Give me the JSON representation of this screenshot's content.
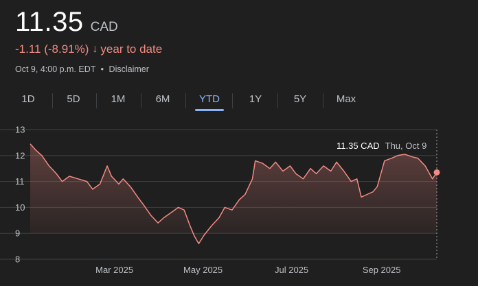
{
  "quote": {
    "price": "11.35",
    "currency": "CAD",
    "change": "-1.11 (-8.91%)",
    "period": "year to date",
    "timestamp": "Oct 9, 4:00 p.m. EDT",
    "separator": "•",
    "disclaimer": "Disclaimer"
  },
  "tabs": [
    {
      "label": "1D",
      "active": false
    },
    {
      "label": "5D",
      "active": false
    },
    {
      "label": "1M",
      "active": false
    },
    {
      "label": "6M",
      "active": false
    },
    {
      "label": "YTD",
      "active": true
    },
    {
      "label": "1Y",
      "active": false
    },
    {
      "label": "5Y",
      "active": false
    },
    {
      "label": "Max",
      "active": false
    }
  ],
  "tooltip": {
    "price": "11.35 CAD",
    "date": "Thu, Oct 9"
  },
  "colors": {
    "line": "#f28b82",
    "accent": "#8ab4f8",
    "background": "#1f1f1f"
  },
  "chart_data": {
    "type": "area",
    "ylim": [
      8,
      13
    ],
    "yticks": [
      "13",
      "12",
      "11",
      "10",
      "9",
      "8"
    ],
    "xticks": [
      {
        "label": "Mar 2025",
        "date": "2025-03-01"
      },
      {
        "label": "May 2025",
        "date": "2025-05-01"
      },
      {
        "label": "Jul 2025",
        "date": "2025-07-01"
      },
      {
        "label": "Sep 2025",
        "date": "2025-09-01"
      }
    ],
    "xlim": [
      "2025-01-02",
      "2025-10-09"
    ],
    "grid": true,
    "points": [
      [
        "2025-01-02",
        12.45
      ],
      [
        "2025-01-06",
        12.2
      ],
      [
        "2025-01-10",
        12.0
      ],
      [
        "2025-01-15",
        11.6
      ],
      [
        "2025-01-20",
        11.3
      ],
      [
        "2025-01-24",
        11.0
      ],
      [
        "2025-01-29",
        11.2
      ],
      [
        "2025-02-04",
        11.1
      ],
      [
        "2025-02-10",
        11.0
      ],
      [
        "2025-02-14",
        10.7
      ],
      [
        "2025-02-19",
        10.9
      ],
      [
        "2025-02-24",
        11.6
      ],
      [
        "2025-02-27",
        11.2
      ],
      [
        "2025-03-04",
        10.9
      ],
      [
        "2025-03-07",
        11.1
      ],
      [
        "2025-03-12",
        10.8
      ],
      [
        "2025-03-17",
        10.4
      ],
      [
        "2025-03-21",
        10.1
      ],
      [
        "2025-03-26",
        9.7
      ],
      [
        "2025-03-31",
        9.4
      ],
      [
        "2025-04-04",
        9.6
      ],
      [
        "2025-04-09",
        9.8
      ],
      [
        "2025-04-14",
        10.0
      ],
      [
        "2025-04-18",
        9.9
      ],
      [
        "2025-04-22",
        9.3
      ],
      [
        "2025-04-25",
        8.9
      ],
      [
        "2025-04-28",
        8.6
      ],
      [
        "2025-05-02",
        8.95
      ],
      [
        "2025-05-07",
        9.3
      ],
      [
        "2025-05-12",
        9.6
      ],
      [
        "2025-05-16",
        10.0
      ],
      [
        "2025-05-21",
        9.9
      ],
      [
        "2025-05-26",
        10.3
      ],
      [
        "2025-05-30",
        10.5
      ],
      [
        "2025-06-04",
        11.1
      ],
      [
        "2025-06-06",
        11.8
      ],
      [
        "2025-06-11",
        11.7
      ],
      [
        "2025-06-16",
        11.5
      ],
      [
        "2025-06-20",
        11.75
      ],
      [
        "2025-06-25",
        11.4
      ],
      [
        "2025-06-30",
        11.6
      ],
      [
        "2025-07-04",
        11.3
      ],
      [
        "2025-07-09",
        11.1
      ],
      [
        "2025-07-14",
        11.5
      ],
      [
        "2025-07-18",
        11.3
      ],
      [
        "2025-07-23",
        11.6
      ],
      [
        "2025-07-28",
        11.4
      ],
      [
        "2025-08-01",
        11.75
      ],
      [
        "2025-08-06",
        11.4
      ],
      [
        "2025-08-11",
        11.0
      ],
      [
        "2025-08-15",
        11.1
      ],
      [
        "2025-08-18",
        10.4
      ],
      [
        "2025-08-22",
        10.5
      ],
      [
        "2025-08-26",
        10.6
      ],
      [
        "2025-08-29",
        10.8
      ],
      [
        "2025-09-03",
        11.8
      ],
      [
        "2025-09-08",
        11.9
      ],
      [
        "2025-09-12",
        12.0
      ],
      [
        "2025-09-17",
        12.05
      ],
      [
        "2025-09-22",
        11.95
      ],
      [
        "2025-09-26",
        11.9
      ],
      [
        "2025-10-01",
        11.6
      ],
      [
        "2025-10-06",
        11.1
      ],
      [
        "2025-10-09",
        11.35
      ]
    ]
  }
}
